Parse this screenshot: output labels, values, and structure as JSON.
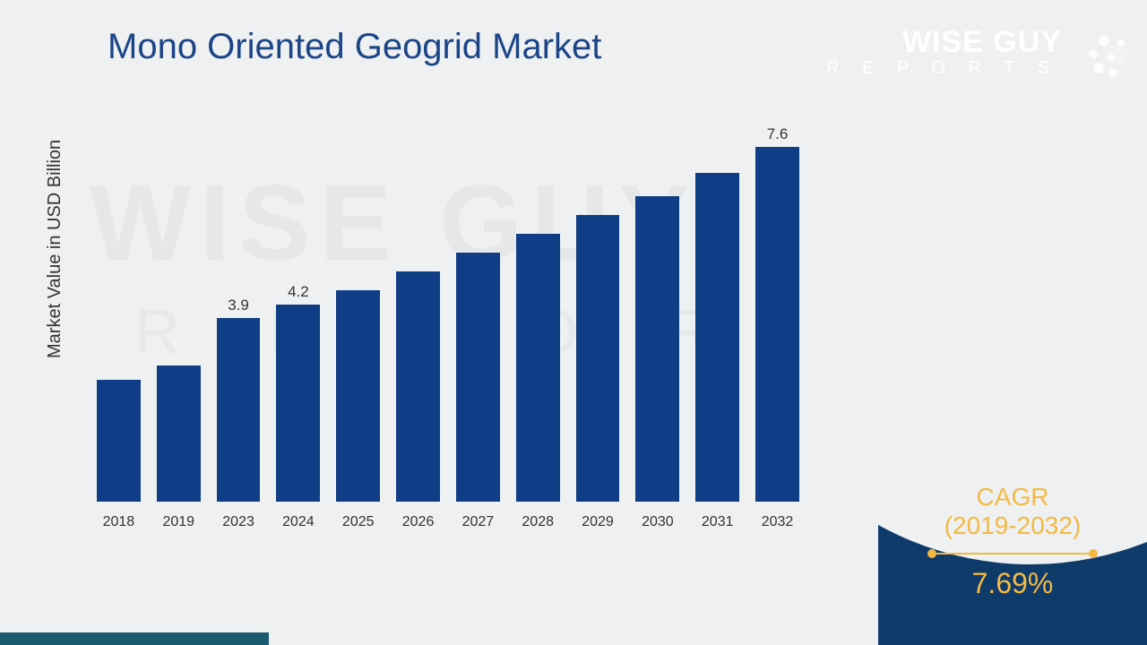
{
  "title": "Mono Oriented Geogrid Market",
  "logo": {
    "line1": "WISE GUY",
    "line2": "R E P O R T S"
  },
  "watermark": {
    "line1": "WISE GUY",
    "line2": "R E P O R T S"
  },
  "chart": {
    "type": "bar",
    "ylabel": "Market Value in USD Billion",
    "categories": [
      "2018",
      "2019",
      "2023",
      "2024",
      "2025",
      "2026",
      "2027",
      "2028",
      "2029",
      "2030",
      "2031",
      "2032"
    ],
    "values": [
      2.6,
      2.9,
      3.9,
      4.2,
      4.5,
      4.9,
      5.3,
      5.7,
      6.1,
      6.5,
      7.0,
      7.6
    ],
    "show_value_for": [
      "2023",
      "2024",
      "2032"
    ],
    "bar_color": "#0f3e86",
    "ymax": 8.0,
    "label_fontsize": 16,
    "value_fontsize": 17,
    "ylabel_fontsize": 20,
    "background_color": "#eef0f1"
  },
  "cagr": {
    "label": "CAGR",
    "range": "(2019-2032)",
    "value": "7.69%",
    "color": "#f4b942",
    "fontsize": 28
  },
  "colors": {
    "page_bg": "#eef0f1",
    "panel_bg": "#0f3b6b",
    "title": "#1c4587",
    "accent": "#f4b942",
    "bottom_bar": "#1c5a72",
    "watermark": "#d8dadb"
  }
}
